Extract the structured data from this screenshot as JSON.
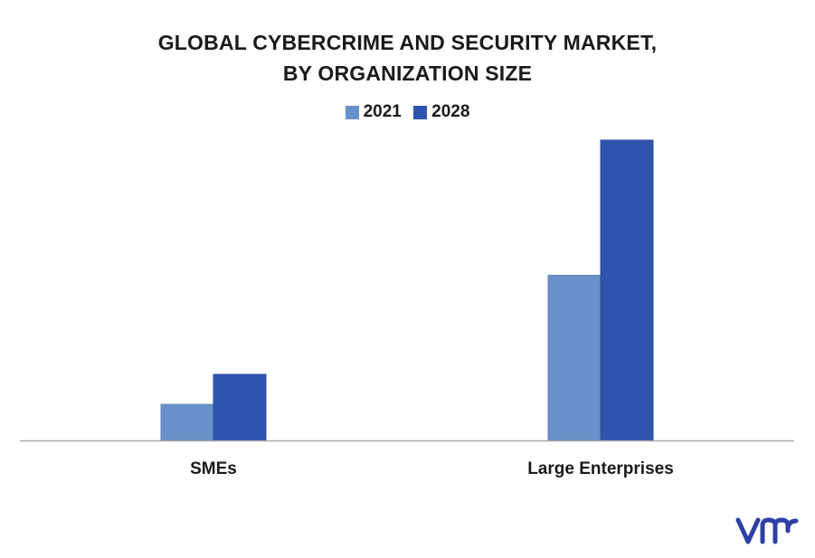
{
  "chart_data": {
    "type": "bar",
    "title": [
      "GLOBAL CYBERCRIME  AND SECURITY MARKET,",
      "BY ORGANIZATION SIZE"
    ],
    "categories": [
      "SMEs",
      "Large Enterprises"
    ],
    "series": [
      {
        "name": "2021",
        "color": "#6891c9",
        "values": [
          12,
          55
        ]
      },
      {
        "name": "2028",
        "color": "#2e54ad",
        "values": [
          22,
          100
        ]
      }
    ],
    "ylim": [
      0,
      100
    ],
    "grid": false,
    "legend_position": "top-center",
    "y_axis_visible": false
  },
  "colors": {
    "axis": "#aaaaaa",
    "bar_edge_2021": "#5b84bd",
    "bar_edge_2028": "#2a4c9e",
    "logo": "#2e3fa5"
  },
  "logo": {
    "icon": "vmr-logo-icon"
  }
}
